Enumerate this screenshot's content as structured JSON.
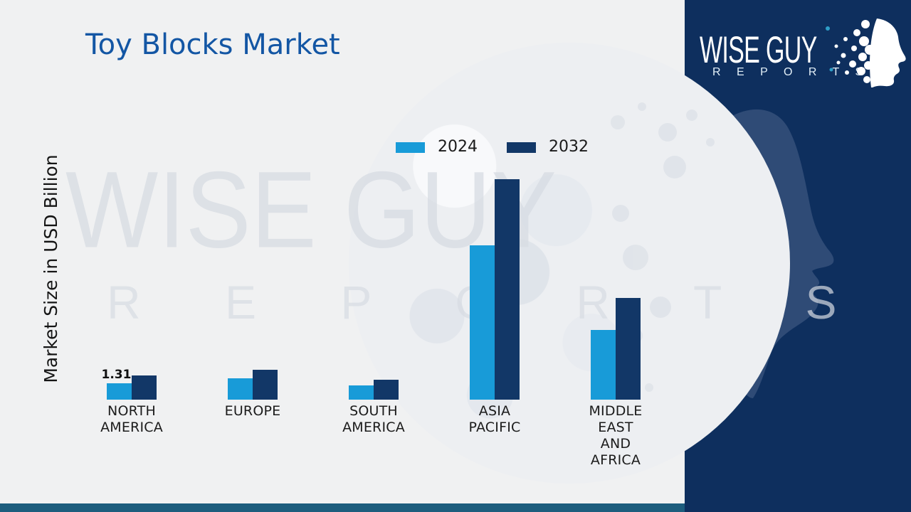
{
  "header": {
    "title": "Toy Blocks Market"
  },
  "branding": {
    "logo": {
      "name_line": "WISE GUY",
      "sub_line": "R E P O R T S"
    },
    "watermark": {
      "name_line": "WISE GUY",
      "sub_line": "R E P O R T S"
    }
  },
  "colors": {
    "title_blue": "#1356a4",
    "series_2024": "#189bd8",
    "series_2032": "#123767",
    "panel_navy": "#0e2f5e",
    "footer_teal": "#1d5d7d",
    "background": "#f0f1f2"
  },
  "chart_data": {
    "type": "bar",
    "title": "Toy Blocks Market",
    "xlabel": "",
    "ylabel": "Market Size in USD Billion",
    "unit": "USD Billion",
    "categories": [
      "NORTH AMERICA",
      "EUROPE",
      "SOUTH AMERICA",
      "ASIA PACIFIC",
      "MIDDLE EAST AND AFRICA"
    ],
    "category_lines": [
      [
        "NORTH",
        "AMERICA"
      ],
      [
        "EUROPE"
      ],
      [
        "SOUTH",
        "AMERICA"
      ],
      [
        "ASIA",
        "PACIFIC"
      ],
      [
        "MIDDLE",
        "EAST",
        "AND",
        "AFRICA"
      ]
    ],
    "series": [
      {
        "name": "2024",
        "color": "#189bd8",
        "values": [
          1.31,
          1.7,
          1.1,
          12.1,
          5.5
        ]
      },
      {
        "name": "2032",
        "color": "#123767",
        "values": [
          1.9,
          2.35,
          1.55,
          17.3,
          8.0
        ]
      }
    ],
    "data_labels": [
      {
        "series_index": 0,
        "category_index": 0,
        "text": "1.31"
      }
    ],
    "legend_position": "top-center",
    "grid": false,
    "axes_visible": false,
    "ylim": [
      0,
      18
    ]
  }
}
